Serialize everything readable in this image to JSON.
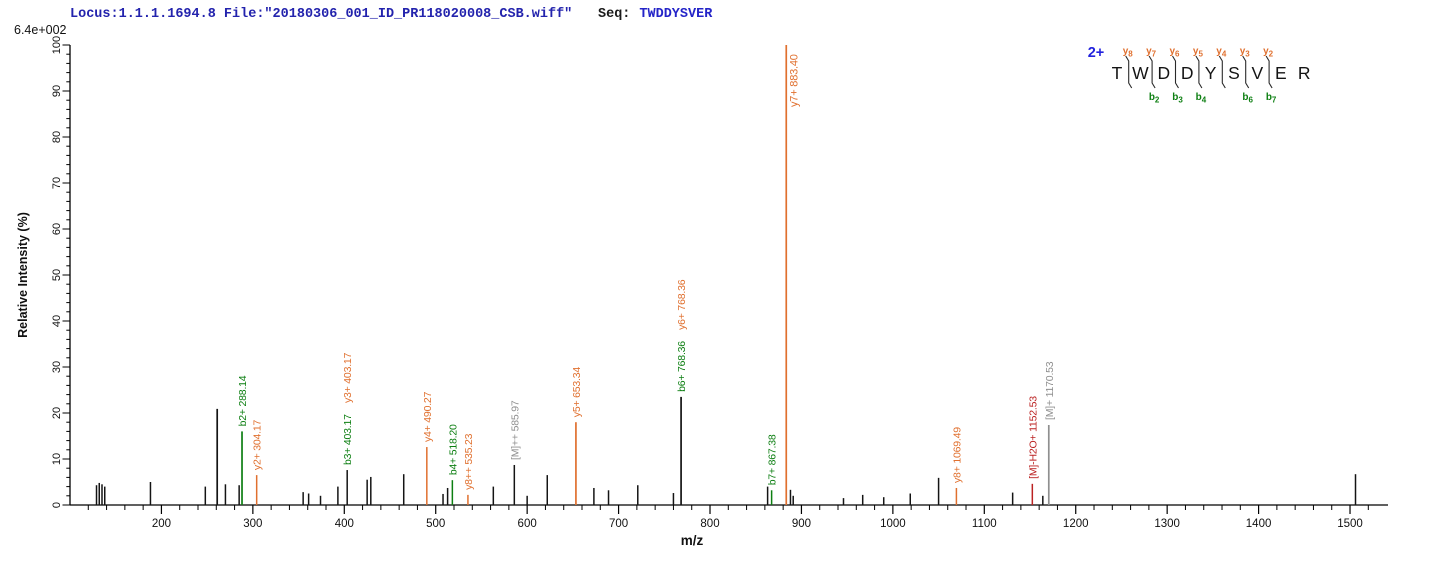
{
  "header": {
    "locus_file": "Locus:1.1.1.1694.8 File:\"20180306_001_ID_PR118020008_CSB.wiff\"",
    "seq_label": "Seq:",
    "seq_value": "TWDDYSVER",
    "scale_label": "6.4e+002"
  },
  "colors": {
    "title_blue": "#2323ad",
    "charge_blue": "#2222dd",
    "y_ion_orange": "#e0702f",
    "b_ion_green": "#0d7f12",
    "precursor_gray": "#8f8f8f",
    "water_loss_red": "#bb2222",
    "peak_black": "#141414"
  },
  "chart_data": {
    "type": "bar",
    "subtype": "ms2-spectrum",
    "xlabel": "m/z",
    "ylabel": "Relative  Intensity (%)",
    "xlim": [
      100,
      1540
    ],
    "ylim": [
      0,
      100
    ],
    "x_major_ticks": [
      200,
      300,
      400,
      500,
      600,
      700,
      800,
      900,
      1000,
      1100,
      1200,
      1300,
      1400,
      1500
    ],
    "x_minor_tick_step": 20,
    "y_major_tick_step": 10,
    "y_minor_tick_step": 2,
    "peaks": [
      {
        "mz": 129,
        "intensity": 4.3,
        "color": "black"
      },
      {
        "mz": 132,
        "intensity": 4.8,
        "color": "black"
      },
      {
        "mz": 135,
        "intensity": 4.5,
        "color": "black"
      },
      {
        "mz": 138,
        "intensity": 4.0,
        "color": "black"
      },
      {
        "mz": 188,
        "intensity": 5.0,
        "color": "black"
      },
      {
        "mz": 248,
        "intensity": 4.0,
        "color": "black"
      },
      {
        "mz": 261,
        "intensity": 20.9,
        "color": "black"
      },
      {
        "mz": 270,
        "intensity": 4.5,
        "color": "black"
      },
      {
        "mz": 285,
        "intensity": 4.3,
        "color": "black"
      },
      {
        "mz": 288.14,
        "intensity": 16.0,
        "color": "green",
        "labels": [
          {
            "text": "b2+ 288.14",
            "color": "green"
          }
        ]
      },
      {
        "mz": 304.17,
        "intensity": 6.5,
        "color": "orange",
        "labels": [
          {
            "text": "y2+ 304.17",
            "color": "orange"
          }
        ]
      },
      {
        "mz": 355,
        "intensity": 2.8,
        "color": "black"
      },
      {
        "mz": 361,
        "intensity": 2.5,
        "color": "black"
      },
      {
        "mz": 374,
        "intensity": 2.0,
        "color": "black"
      },
      {
        "mz": 393,
        "intensity": 4.0,
        "color": "black"
      },
      {
        "mz": 403.17,
        "intensity": 7.6,
        "color": "black",
        "labels": [
          {
            "text": "b3+ 403.17",
            "color": "green"
          },
          {
            "text": "y3+ 403.17",
            "color": "orange"
          }
        ]
      },
      {
        "mz": 425,
        "intensity": 5.5,
        "color": "black"
      },
      {
        "mz": 429,
        "intensity": 6.1,
        "color": "black"
      },
      {
        "mz": 465,
        "intensity": 6.7,
        "color": "black"
      },
      {
        "mz": 490.27,
        "intensity": 12.6,
        "color": "orange",
        "labels": [
          {
            "text": "y4+ 490.27",
            "color": "orange"
          }
        ]
      },
      {
        "mz": 508,
        "intensity": 2.4,
        "color": "black"
      },
      {
        "mz": 513,
        "intensity": 3.7,
        "color": "black"
      },
      {
        "mz": 518.2,
        "intensity": 5.4,
        "color": "green",
        "labels": [
          {
            "text": "b4+ 518.20",
            "color": "green"
          }
        ]
      },
      {
        "mz": 535.23,
        "intensity": 2.2,
        "color": "orange",
        "labels": [
          {
            "text": "y8++ 535.23",
            "color": "orange"
          }
        ]
      },
      {
        "mz": 563,
        "intensity": 4.0,
        "color": "black"
      },
      {
        "mz": 585.97,
        "intensity": 8.7,
        "color": "black",
        "labels": [
          {
            "text": "[M]++ 585.97",
            "color": "gray"
          }
        ]
      },
      {
        "mz": 600,
        "intensity": 2.0,
        "color": "black"
      },
      {
        "mz": 622,
        "intensity": 6.5,
        "color": "black"
      },
      {
        "mz": 653.34,
        "intensity": 18.0,
        "color": "orange",
        "labels": [
          {
            "text": "y5+ 653.34",
            "color": "orange"
          }
        ]
      },
      {
        "mz": 673,
        "intensity": 3.7,
        "color": "black"
      },
      {
        "mz": 689,
        "intensity": 3.2,
        "color": "black"
      },
      {
        "mz": 721,
        "intensity": 4.3,
        "color": "black"
      },
      {
        "mz": 760,
        "intensity": 2.6,
        "color": "black"
      },
      {
        "mz": 768.36,
        "intensity": 23.5,
        "color": "black",
        "labels": [
          {
            "text": "b6+ 768.36",
            "color": "green"
          },
          {
            "text": "y6+ 768.36",
            "color": "orange"
          }
        ]
      },
      {
        "mz": 863,
        "intensity": 4.0,
        "color": "black"
      },
      {
        "mz": 867.38,
        "intensity": 3.2,
        "color": "green",
        "labels": [
          {
            "text": "b7+ 867.38",
            "color": "green"
          }
        ]
      },
      {
        "mz": 883.4,
        "intensity": 100.0,
        "color": "orange",
        "labels": [
          {
            "text": "y7+ 883.40",
            "color": "orange"
          }
        ],
        "label_beside_top": true
      },
      {
        "mz": 888,
        "intensity": 3.3,
        "color": "black"
      },
      {
        "mz": 891,
        "intensity": 2.0,
        "color": "black"
      },
      {
        "mz": 946,
        "intensity": 1.5,
        "color": "black"
      },
      {
        "mz": 967,
        "intensity": 2.2,
        "color": "black"
      },
      {
        "mz": 990,
        "intensity": 1.7,
        "color": "black"
      },
      {
        "mz": 1019,
        "intensity": 2.5,
        "color": "black"
      },
      {
        "mz": 1050,
        "intensity": 5.9,
        "color": "black"
      },
      {
        "mz": 1069.49,
        "intensity": 3.7,
        "color": "orange",
        "labels": [
          {
            "text": "y8+ 1069.49",
            "color": "orange"
          }
        ]
      },
      {
        "mz": 1131,
        "intensity": 2.7,
        "color": "black"
      },
      {
        "mz": 1152.53,
        "intensity": 4.6,
        "color": "red",
        "labels": [
          {
            "text": "[M]-H2O+ 1152.53",
            "color": "red"
          }
        ]
      },
      {
        "mz": 1164,
        "intensity": 2.0,
        "color": "black"
      },
      {
        "mz": 1170.53,
        "intensity": 17.4,
        "color": "gray",
        "labels": [
          {
            "text": "[M]+ 1170.53",
            "color": "gray"
          }
        ]
      },
      {
        "mz": 1506,
        "intensity": 6.7,
        "color": "black"
      }
    ]
  },
  "sequence_panel": {
    "charge": "2+",
    "residues": [
      "T",
      "W",
      "D",
      "D",
      "Y",
      "S",
      "V",
      "E",
      "R"
    ],
    "y_ions": [
      {
        "gap": 1,
        "label": "y",
        "sub": "8"
      },
      {
        "gap": 2,
        "label": "y",
        "sub": "7"
      },
      {
        "gap": 3,
        "label": "y",
        "sub": "6"
      },
      {
        "gap": 4,
        "label": "y",
        "sub": "5"
      },
      {
        "gap": 5,
        "label": "y",
        "sub": "4"
      },
      {
        "gap": 6,
        "label": "y",
        "sub": "3"
      },
      {
        "gap": 7,
        "label": "y",
        "sub": "2"
      }
    ],
    "b_ions": [
      {
        "gap": 2,
        "label": "b",
        "sub": "2"
      },
      {
        "gap": 3,
        "label": "b",
        "sub": "3"
      },
      {
        "gap": 4,
        "label": "b",
        "sub": "4"
      },
      {
        "gap": 6,
        "label": "b",
        "sub": "6"
      },
      {
        "gap": 7,
        "label": "b",
        "sub": "7"
      }
    ]
  }
}
